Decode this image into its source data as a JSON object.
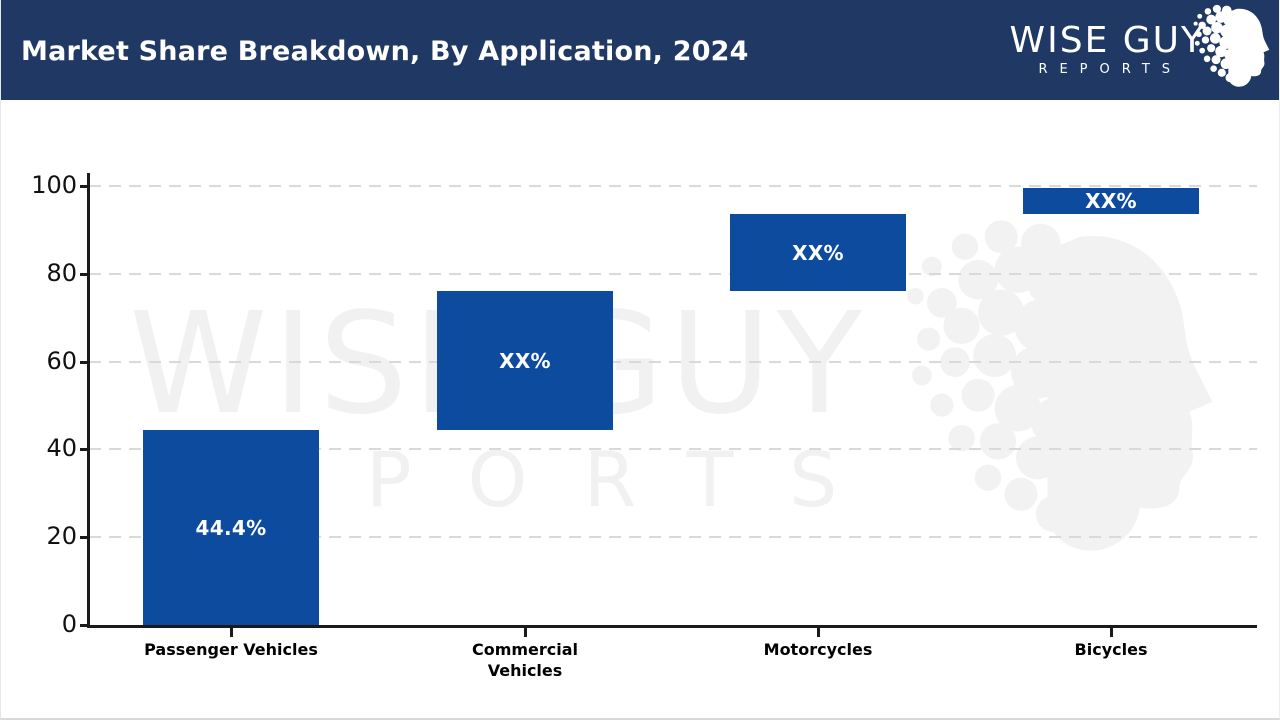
{
  "header": {
    "title": "Market Share Breakdown, By Application, 2024",
    "logo": {
      "line1": "WISE GUY",
      "line2": "REPORTS"
    }
  },
  "watermark": {
    "line1": "WISE GUY",
    "line2": "REPORTS"
  },
  "colors": {
    "header_bg": "#203864",
    "bar": "#0d4b9f",
    "grid": "#d9d9d9",
    "axis": "#1a1a1a",
    "watermark": "#f1f1f1",
    "bar_label": "#ffffff",
    "title_text": "#ffffff"
  },
  "chart_data": {
    "type": "bar",
    "subtype": "stacked-waterfall",
    "title": "Market Share Breakdown, By Application, 2024",
    "categories": [
      "Passenger Vehicles",
      "Commercial\nVehicles",
      "Motorcycles",
      "Bicycles"
    ],
    "segments": [
      {
        "category": "Passenger Vehicles",
        "start": 0,
        "end": 44.4,
        "label": "44.4%"
      },
      {
        "category": "Commercial Vehicles",
        "start": 44.4,
        "end": 76.0,
        "label": "XX%"
      },
      {
        "category": "Motorcycles",
        "start": 76.0,
        "end": 93.6,
        "label": "XX%"
      },
      {
        "category": "Bicycles",
        "start": 93.6,
        "end": 99.5,
        "label": "XX%"
      }
    ],
    "unit": "%",
    "ylim": [
      0,
      100
    ],
    "yticks": [
      0,
      20,
      40,
      60,
      80,
      100
    ],
    "xlabel": "",
    "ylabel": "",
    "grid": "dashed-horizontal",
    "legend": "none"
  }
}
